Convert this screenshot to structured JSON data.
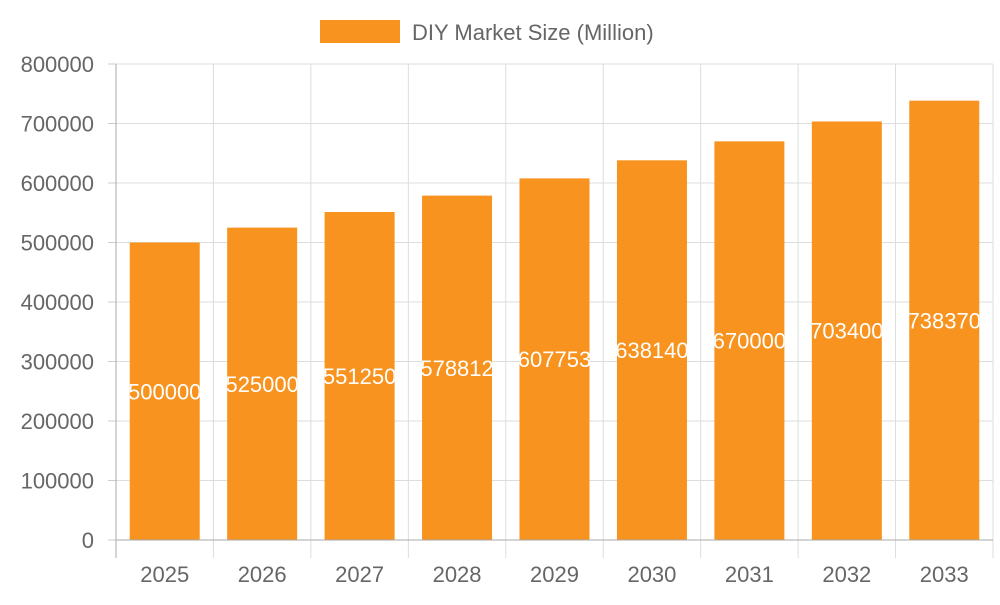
{
  "chart_data": {
    "type": "bar",
    "title": "",
    "legend": {
      "label": "DIY Market Size (Million)",
      "position": "top"
    },
    "categories": [
      "2025",
      "2026",
      "2027",
      "2028",
      "2029",
      "2030",
      "2031",
      "2032",
      "2033"
    ],
    "series": [
      {
        "name": "DIY Market Size (Million)",
        "values": [
          500000,
          525000,
          551250,
          578812,
          607753,
          638140,
          670000,
          703400,
          738370
        ],
        "color": "#f7931e"
      }
    ],
    "data_labels": [
      "500000",
      "525000",
      "551250",
      "578812",
      "607753",
      "638140",
      "670000",
      "703400",
      "738370"
    ],
    "xlabel": "",
    "ylabel": "",
    "ylim": [
      0,
      800000
    ],
    "yticks": [
      "0",
      "100000",
      "200000",
      "300000",
      "400000",
      "500000",
      "600000",
      "700000",
      "800000"
    ],
    "grid": true
  }
}
